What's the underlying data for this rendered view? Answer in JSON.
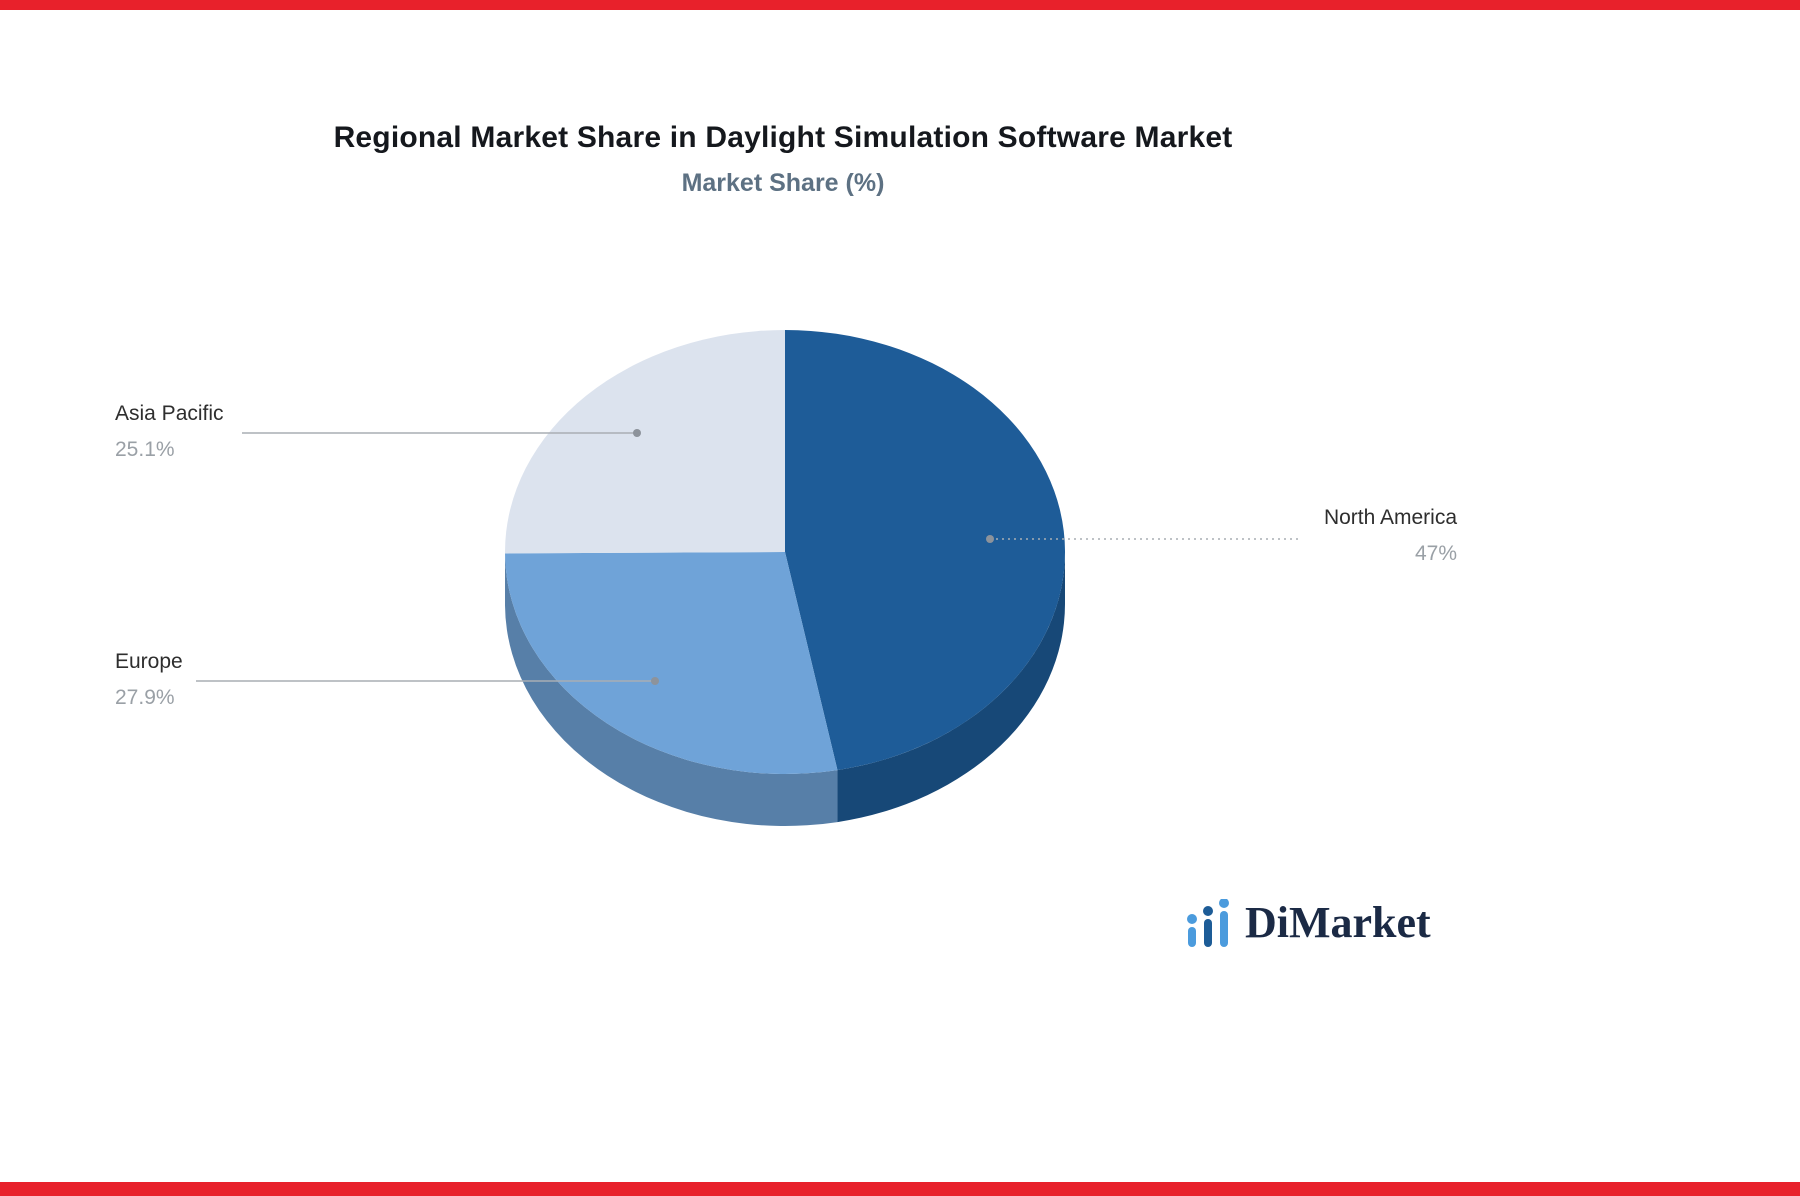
{
  "page": {
    "background": "#ffffff",
    "accent_bar_color": "#e8212b"
  },
  "header": {
    "title": "Regional Market Share in Daylight Simulation Software Market",
    "subtitle": "Market Share (%)"
  },
  "brand": {
    "name": "DiMarket",
    "icon": "bar-chart-logo-icon",
    "text_color": "#1b2a45",
    "icon_blue": "#4b9bdd",
    "icon_blue_dark": "#1d5c97"
  },
  "chart_data": {
    "type": "pie",
    "title": "Regional Market Share in Daylight Simulation Software Market",
    "subtitle": "Market Share (%)",
    "unit": "percent",
    "start": "top",
    "direction": "clockwise",
    "legend_position": "none",
    "style": "3d-pie",
    "slices": [
      {
        "label": "North America",
        "value": 47,
        "display": "47%",
        "color": "#1e5c98"
      },
      {
        "label": "Europe",
        "value": 27.9,
        "display": "27.9%",
        "color": "#6fa3d8"
      },
      {
        "label": "Asia Pacific",
        "value": 25.1,
        "display": "25.1%",
        "color": "#dce3ee"
      }
    ]
  }
}
